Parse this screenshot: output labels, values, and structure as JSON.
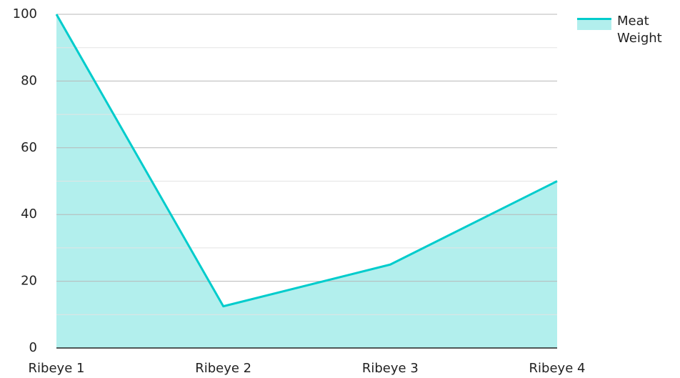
{
  "chart_data": {
    "type": "area",
    "categories": [
      "Ribeye 1",
      "Ribeye 2",
      "Ribeye 3",
      "Ribeye 4"
    ],
    "series": [
      {
        "name": "Meat Weight",
        "color": "#00cccc",
        "fill": "#b2efed",
        "values": [
          100,
          12.5,
          25,
          50
        ]
      }
    ],
    "ylim": [
      0,
      100
    ],
    "yticks": [
      0,
      20,
      40,
      60,
      80,
      100
    ],
    "minor_yticks": [
      10,
      30,
      50,
      70,
      90
    ],
    "grid": true,
    "legend": "top-right"
  }
}
